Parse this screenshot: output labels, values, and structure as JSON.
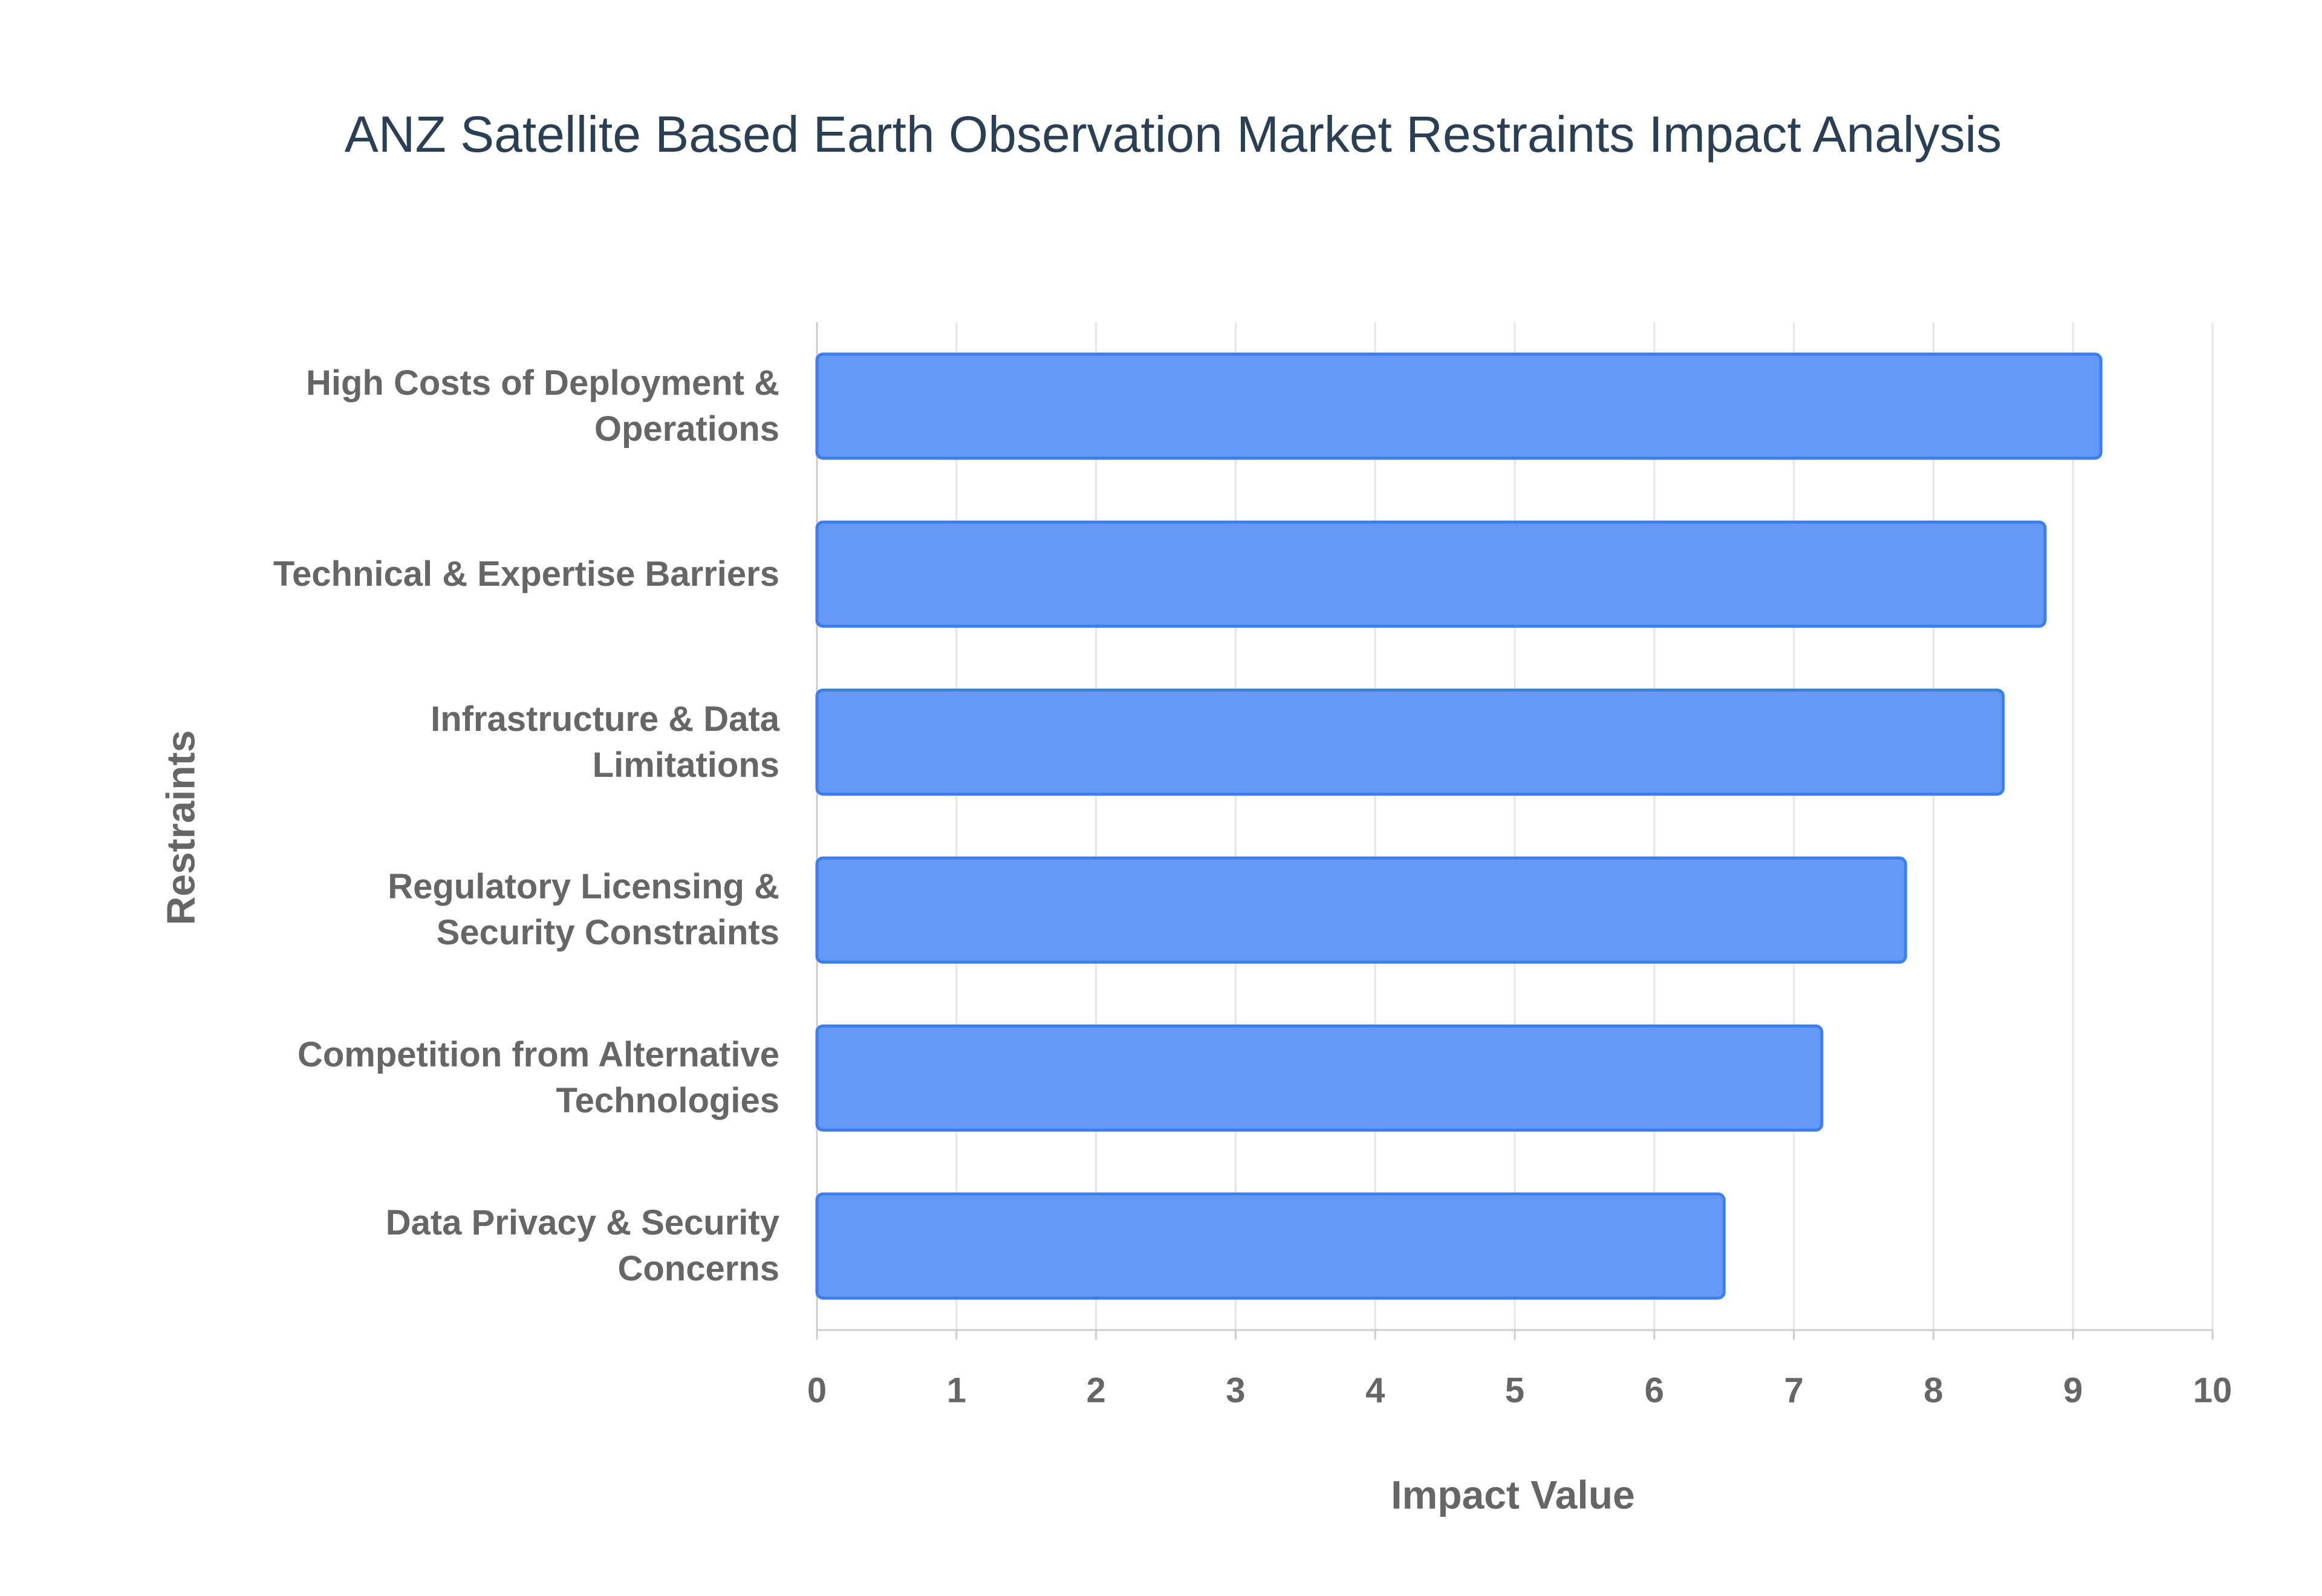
{
  "chart_data": {
    "type": "hbar",
    "title": "ANZ Satellite Based Earth Observation Market Restraints Impact Analysis",
    "x_label": "Impact Value",
    "y_label": "Restraints",
    "categories": [
      "High Costs of Deployment & Operations",
      "Technical & Expertise Barriers",
      "Infrastructure & Data Limitations",
      "Regulatory Licensing & Security Constraints",
      "Competition from Alternative Technologies",
      "Data Privacy & Security Concerns"
    ],
    "values": [
      9.2,
      8.8,
      8.5,
      7.8,
      7.2,
      6.5
    ],
    "color": "#6399f4",
    "xlim": [
      0,
      10
    ],
    "xticks": [
      0,
      1,
      2,
      3,
      4,
      5,
      6,
      7,
      8,
      9,
      10
    ],
    "grid": true
  }
}
